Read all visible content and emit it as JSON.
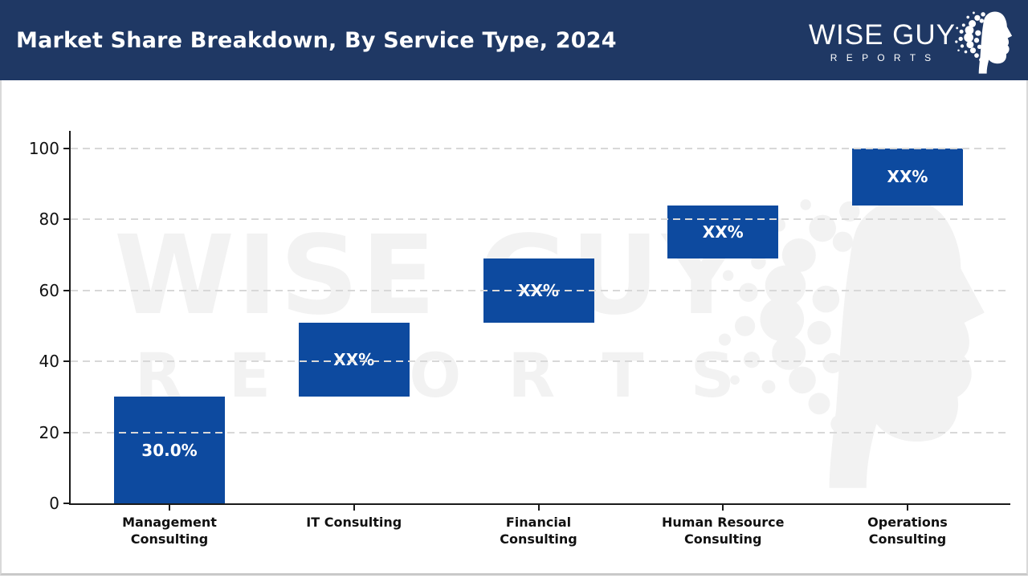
{
  "header": {
    "title": "Market Share Breakdown, By Service Type, 2024",
    "bg_color": "#1f3864"
  },
  "brand": {
    "wordmark": "WISE GUY",
    "subtext": "R E P O R T S"
  },
  "watermark": {
    "wordmark": "WISE GUY",
    "subtext": "R E P O R T S"
  },
  "chart_data": {
    "type": "bar",
    "variant": "waterfall",
    "title": "Market Share Breakdown, By Service Type, 2024",
    "categories": [
      "Management\nConsulting",
      "IT Consulting",
      "Financial\nConsulting",
      "Human Resource\nConsulting",
      "Operations\nConsulting"
    ],
    "bars": [
      {
        "category": "Management Consulting",
        "start": 0,
        "end": 30,
        "label": "30.0%"
      },
      {
        "category": "IT Consulting",
        "start": 30,
        "end": 51,
        "label": "XX%"
      },
      {
        "category": "Financial Consulting",
        "start": 51,
        "end": 69,
        "label": "XX%"
      },
      {
        "category": "Human Resource Consulting",
        "start": 69,
        "end": 84,
        "label": "XX%"
      },
      {
        "category": "Operations Consulting",
        "start": 84,
        "end": 100,
        "label": "XX%"
      }
    ],
    "y_ticks": [
      0,
      20,
      40,
      60,
      80,
      100
    ],
    "ylim": [
      0,
      105
    ],
    "xlabel": "",
    "ylabel": "",
    "grid": true,
    "grid_style": "dashed",
    "legend_position": "none",
    "bar_color": "#0d4a9f",
    "bar_label_color": "#ffffff",
    "axis_color": "#1a1a1a"
  }
}
